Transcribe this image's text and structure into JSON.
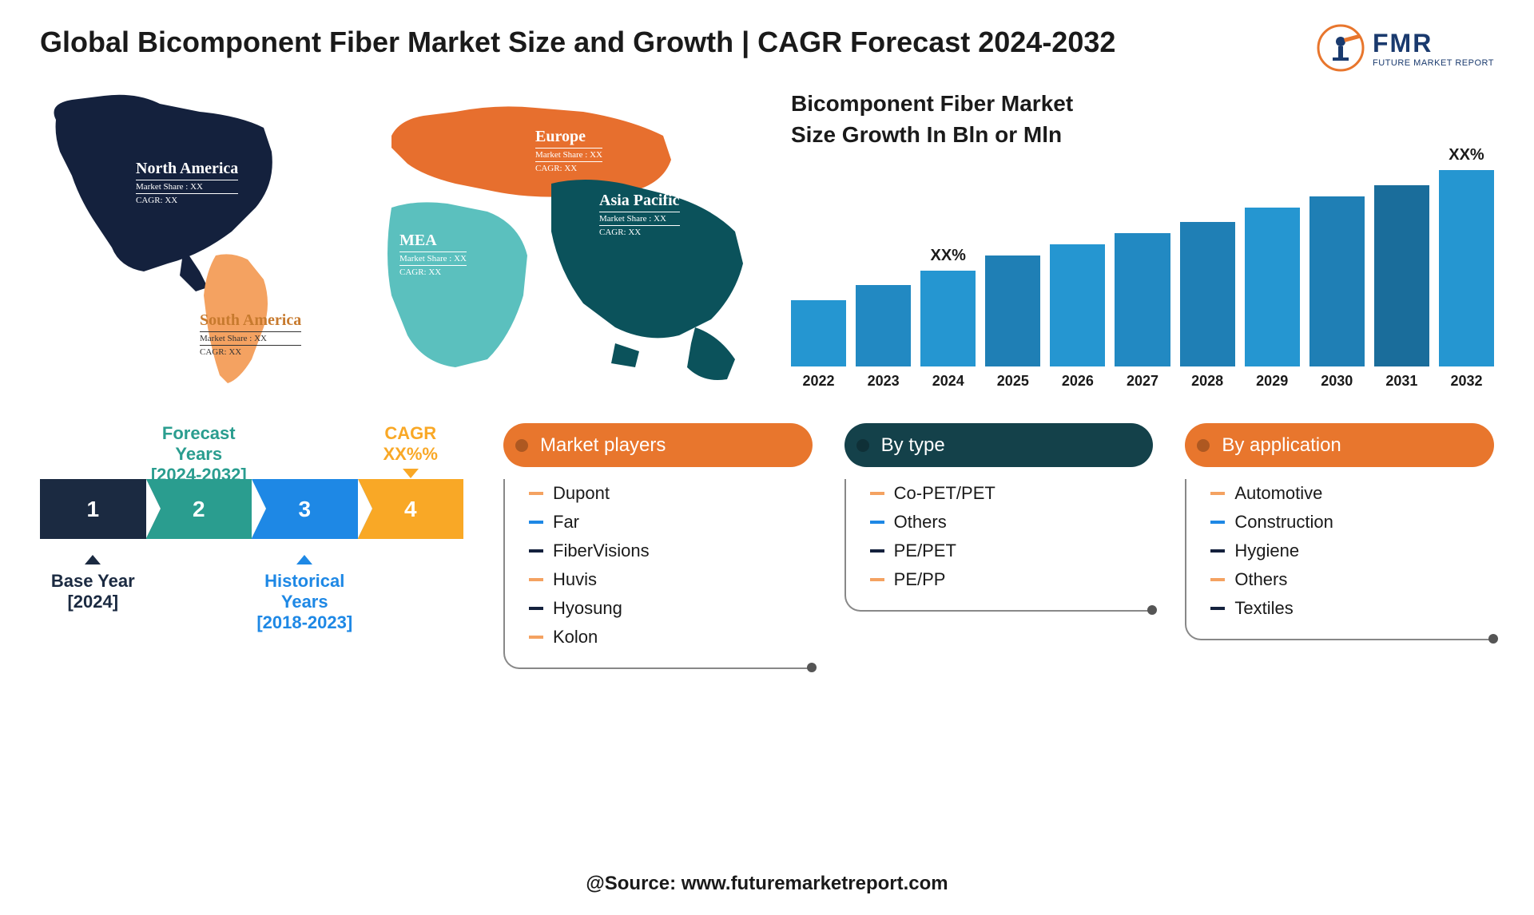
{
  "title": "Global Bicomponent Fiber  Market Size and Growth | CAGR Forecast 2024-2032",
  "logo": {
    "main": "FMR",
    "sub": "FUTURE MARKET REPORT"
  },
  "map": {
    "regions": [
      {
        "name": "North America",
        "share": "Market Share : XX",
        "cagr": "CAGR: XX",
        "color": "#14213d"
      },
      {
        "name": "South America",
        "share": "Market Share : XX",
        "cagr": "CAGR: XX",
        "color": "#f4a261",
        "text_color": "#222"
      },
      {
        "name": "Europe",
        "share": "Market Share : XX",
        "cagr": "CAGR: XX",
        "color": "#e76f2e"
      },
      {
        "name": "MEA",
        "share": "Market Share : XX",
        "cagr": "CAGR: XX",
        "color": "#5bc0be"
      },
      {
        "name": "Asia Pacific",
        "share": "Market Share : XX",
        "cagr": "CAGR: XX",
        "color": "#0b525b"
      }
    ]
  },
  "chart": {
    "title": "Bicomponent Fiber Market Size Growth In Bln or Mln",
    "years": [
      "2022",
      "2023",
      "2024",
      "2025",
      "2026",
      "2027",
      "2028",
      "2029",
      "2030",
      "2031",
      "2032"
    ],
    "values": [
      90,
      110,
      130,
      150,
      165,
      180,
      195,
      215,
      230,
      245,
      265
    ],
    "max_value": 280,
    "bar_colors": [
      "#2596d1",
      "#2289c2",
      "#2596d1",
      "#1f7fb5",
      "#2596d1",
      "#2289c2",
      "#1f7fb5",
      "#2596d1",
      "#1f7fb5",
      "#1a6d9b",
      "#2596d1"
    ],
    "annotations": [
      {
        "index": 2,
        "text": "XX%"
      },
      {
        "index": 10,
        "text": "XX%"
      }
    ]
  },
  "timeline": {
    "segments": [
      {
        "num": "1",
        "color": "#1b2a41"
      },
      {
        "num": "2",
        "color": "#2a9d8f"
      },
      {
        "num": "3",
        "color": "#1e88e5"
      },
      {
        "num": "4",
        "color": "#f9a826"
      }
    ],
    "labels": [
      {
        "text": "Base Year",
        "sub": "[2024]",
        "color": "#1b2a41",
        "pos": "bottom",
        "seg": 0
      },
      {
        "text": "Forecast Years",
        "sub": "[2024-2032]",
        "color": "#2a9d8f",
        "pos": "top",
        "seg": 1
      },
      {
        "text": "Historical Years",
        "sub": "[2018-2023]",
        "color": "#1e88e5",
        "pos": "bottom",
        "seg": 2
      },
      {
        "text": "CAGR",
        "sub": "XX%%",
        "color": "#f9a826",
        "pos": "top",
        "seg": 3
      }
    ]
  },
  "info_columns": [
    {
      "header": "Market players",
      "header_color": "#e8762d",
      "items": [
        "Dupont",
        "Far",
        "FiberVisions",
        "Huvis",
        "Hyosung",
        "Kolon"
      ],
      "item_colors": [
        "#f4a261",
        "#1e88e5",
        "#14213d",
        "#f4a261",
        "#14213d",
        "#f4a261"
      ]
    },
    {
      "header": "By type",
      "header_color": "#14414a",
      "items": [
        "Co-PET/PET",
        "Others",
        "PE/PET",
        "PE/PP"
      ],
      "item_colors": [
        "#f4a261",
        "#1e88e5",
        "#14213d",
        "#f4a261"
      ]
    },
    {
      "header": "By application",
      "header_color": "#e8762d",
      "items": [
        "Automotive",
        "Construction",
        "Hygiene",
        "Others",
        "Textiles"
      ],
      "item_colors": [
        "#f4a261",
        "#1e88e5",
        "#14213d",
        "#f4a261",
        "#14213d"
      ]
    }
  ],
  "source": "@Source: www.futuremarketreport.com"
}
